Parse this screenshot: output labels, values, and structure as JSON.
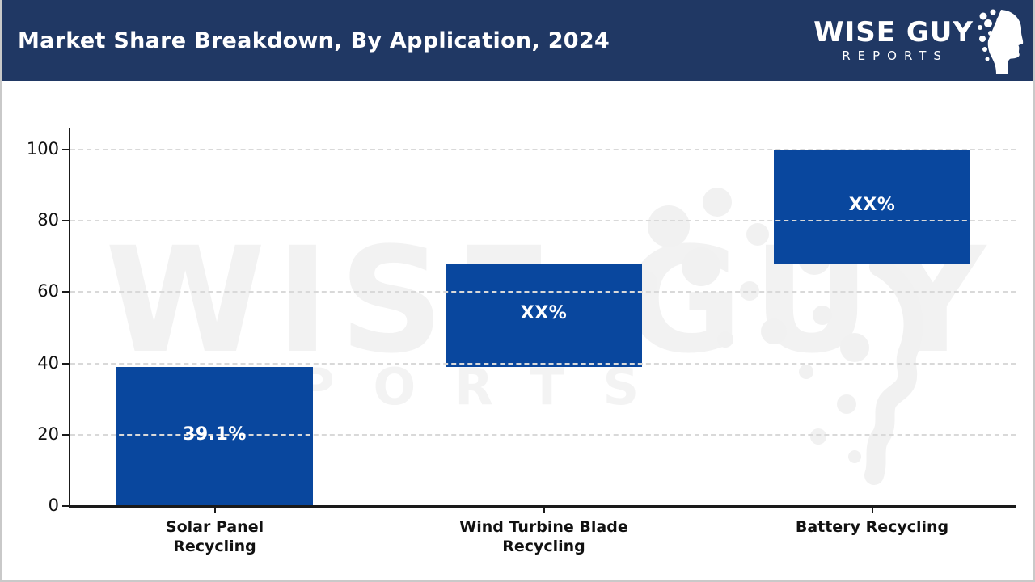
{
  "header": {
    "title": "Market Share Breakdown, By Application, 2024",
    "brand": {
      "line1": "WISE GUY",
      "line2": "REPORTS"
    }
  },
  "watermark": {
    "line1": "WISE GUY",
    "line2": "REPORTS"
  },
  "chart_data": {
    "type": "bar",
    "variant": "waterfall",
    "title": "Market Share Breakdown, By Application, 2024",
    "categories": [
      {
        "lines": [
          "Solar Panel",
          "Recycling"
        ]
      },
      {
        "lines": [
          "Wind Turbine Blade",
          "Recycling"
        ]
      },
      {
        "lines": [
          "Battery Recycling"
        ]
      }
    ],
    "bars": [
      {
        "start": 0,
        "end": 39.1,
        "label": "39.1%"
      },
      {
        "start": 39.1,
        "end": 68,
        "label": "XX%"
      },
      {
        "start": 68,
        "end": 100,
        "label": "XX%"
      }
    ],
    "xlabel": "",
    "ylabel": "",
    "ylim": [
      0,
      100
    ],
    "yticks": [
      0,
      20,
      40,
      60,
      80,
      100
    ],
    "grid": "horizontal-dashed",
    "legend": "none",
    "colors": {
      "bar": "#09479e",
      "bar_label": "#ffffff",
      "axis": "#1a1a1a",
      "gridline": "#d9d9d9",
      "header_bg": "#203864",
      "watermark": "#f2f2f2"
    }
  }
}
